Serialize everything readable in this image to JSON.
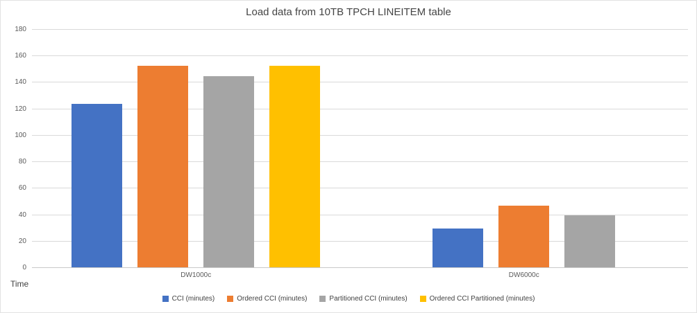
{
  "chart_data": {
    "type": "bar",
    "title": "Load data from 10TB TPCH LINEITEM table",
    "categories": [
      "DW1000c",
      "DW6000c"
    ],
    "series": [
      {
        "name": "CCI (minutes)",
        "color": "#4472C4",
        "values": [
          124,
          30
        ]
      },
      {
        "name": "Ordered CCI (minutes)",
        "color": "#ED7D31",
        "values": [
          153,
          47
        ]
      },
      {
        "name": "Partitioned CCI (minutes)",
        "color": "#A5A5A5",
        "values": [
          145,
          40
        ]
      },
      {
        "name": "Ordered CCI Partitioned (minutes)",
        "color": "#FFC000",
        "values": [
          153,
          null
        ]
      }
    ],
    "xlabel": "",
    "ylabel": "Time",
    "ylim": [
      0,
      180
    ],
    "ytick_step": 20,
    "grid": true,
    "legend_position": "bottom"
  }
}
